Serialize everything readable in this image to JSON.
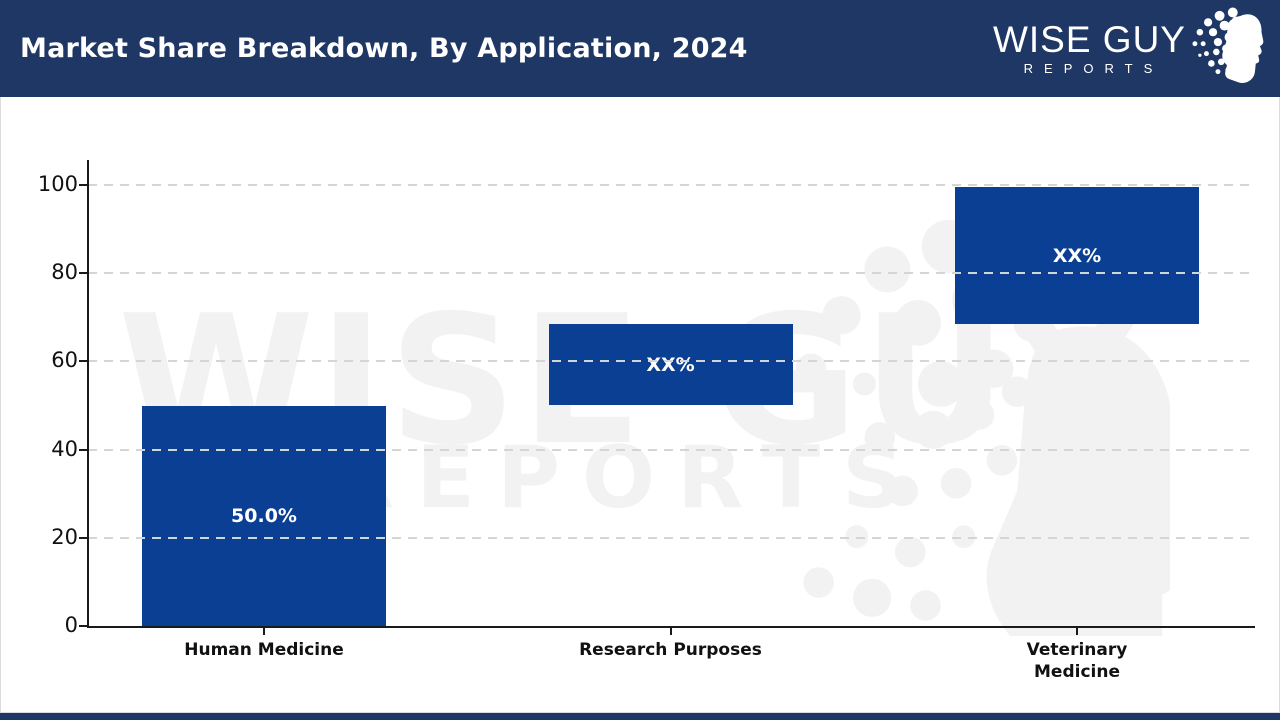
{
  "header": {
    "title": "Market Share Breakdown, By Application, 2024",
    "logo_line1": "WISE GUY",
    "logo_line2": "REPORTS"
  },
  "watermark": {
    "line1": "WISE GUY",
    "line2": "REPORTS"
  },
  "colors": {
    "header_navy": "#1f3765",
    "bar_blue": "#0b3f94",
    "gridline_gray": "#d5d5d5",
    "watermark_gray": "#f2f2f3"
  },
  "chart_data": {
    "type": "bar",
    "subtype": "waterfall-floating-bars",
    "title": "Market Share Breakdown, By Application, 2024",
    "categories": [
      "Human Medicine",
      "Research Purposes",
      "Veterinary Medicine"
    ],
    "category_display": [
      "Human Medicine",
      "Research Purposes",
      "Veterinary\nMedicine"
    ],
    "segments": [
      {
        "category": "Human Medicine",
        "from": 0,
        "to": 50,
        "label": "50.0%"
      },
      {
        "category": "Research Purposes",
        "from": 50,
        "to": 68.5,
        "label": "XX%"
      },
      {
        "category": "Veterinary Medicine",
        "from": 68.5,
        "to": 99.5,
        "label": "XX%"
      }
    ],
    "xlabel": "",
    "ylabel": "",
    "ylim": [
      0,
      105
    ],
    "yticks": [
      0,
      20,
      40,
      60,
      80,
      100
    ],
    "grid": "horizontal-dashed",
    "legend": "none"
  }
}
